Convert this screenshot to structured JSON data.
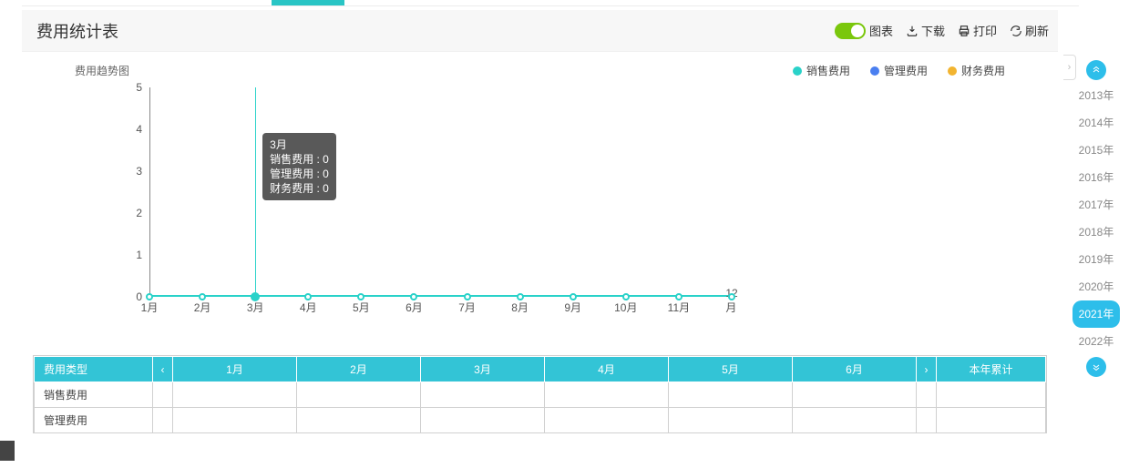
{
  "header": {
    "title": "费用统计表",
    "toggle_label": "图表",
    "download_label": "下载",
    "print_label": "打印",
    "refresh_label": "刷新",
    "accent": "#29c5c5",
    "toggle_on_color": "#7ac70c"
  },
  "chart": {
    "title": "费用趋势图",
    "type": "line",
    "ylim": [
      0,
      5
    ],
    "ytick_step": 1,
    "yticks": [
      "0",
      "1",
      "2",
      "3",
      "4",
      "5"
    ],
    "xlabels": [
      "1月",
      "2月",
      "3月",
      "4月",
      "5月",
      "6月",
      "7月",
      "8月",
      "9月",
      "10月",
      "11月",
      "12月"
    ],
    "series": [
      {
        "name": "销售费用",
        "color": "#2ad2c9",
        "values": [
          0,
          0,
          0,
          0,
          0,
          0,
          0,
          0,
          0,
          0,
          0,
          0
        ]
      },
      {
        "name": "管理费用",
        "color": "#4a7ff0",
        "values": [
          0,
          0,
          0,
          0,
          0,
          0,
          0,
          0,
          0,
          0,
          0,
          0
        ]
      },
      {
        "name": "财务费用",
        "color": "#f2b430",
        "values": [
          0,
          0,
          0,
          0,
          0,
          0,
          0,
          0,
          0,
          0,
          0,
          0
        ]
      }
    ],
    "crosshair_index": 2,
    "tooltip": {
      "title": "3月",
      "rows": [
        {
          "label": "销售费用",
          "value": "0"
        },
        {
          "label": "管理费用",
          "value": "0"
        },
        {
          "label": "财务费用",
          "value": "0"
        }
      ]
    },
    "axis_color": "#888",
    "label_color": "#555"
  },
  "table": {
    "header_bg": "#33c4d6",
    "col0": "费用类型",
    "nav_prev": "‹",
    "nav_next": "›",
    "months": [
      "1月",
      "2月",
      "3月",
      "4月",
      "5月",
      "6月"
    ],
    "total_col": "本年累计",
    "rows": [
      {
        "name": "销售费用"
      },
      {
        "name": "管理费用"
      }
    ]
  },
  "years": {
    "items": [
      "2013年",
      "2014年",
      "2015年",
      "2016年",
      "2017年",
      "2018年",
      "2019年",
      "2020年",
      "2021年",
      "2022年"
    ],
    "active": "2021年",
    "rail_color": "#2dbeea"
  }
}
